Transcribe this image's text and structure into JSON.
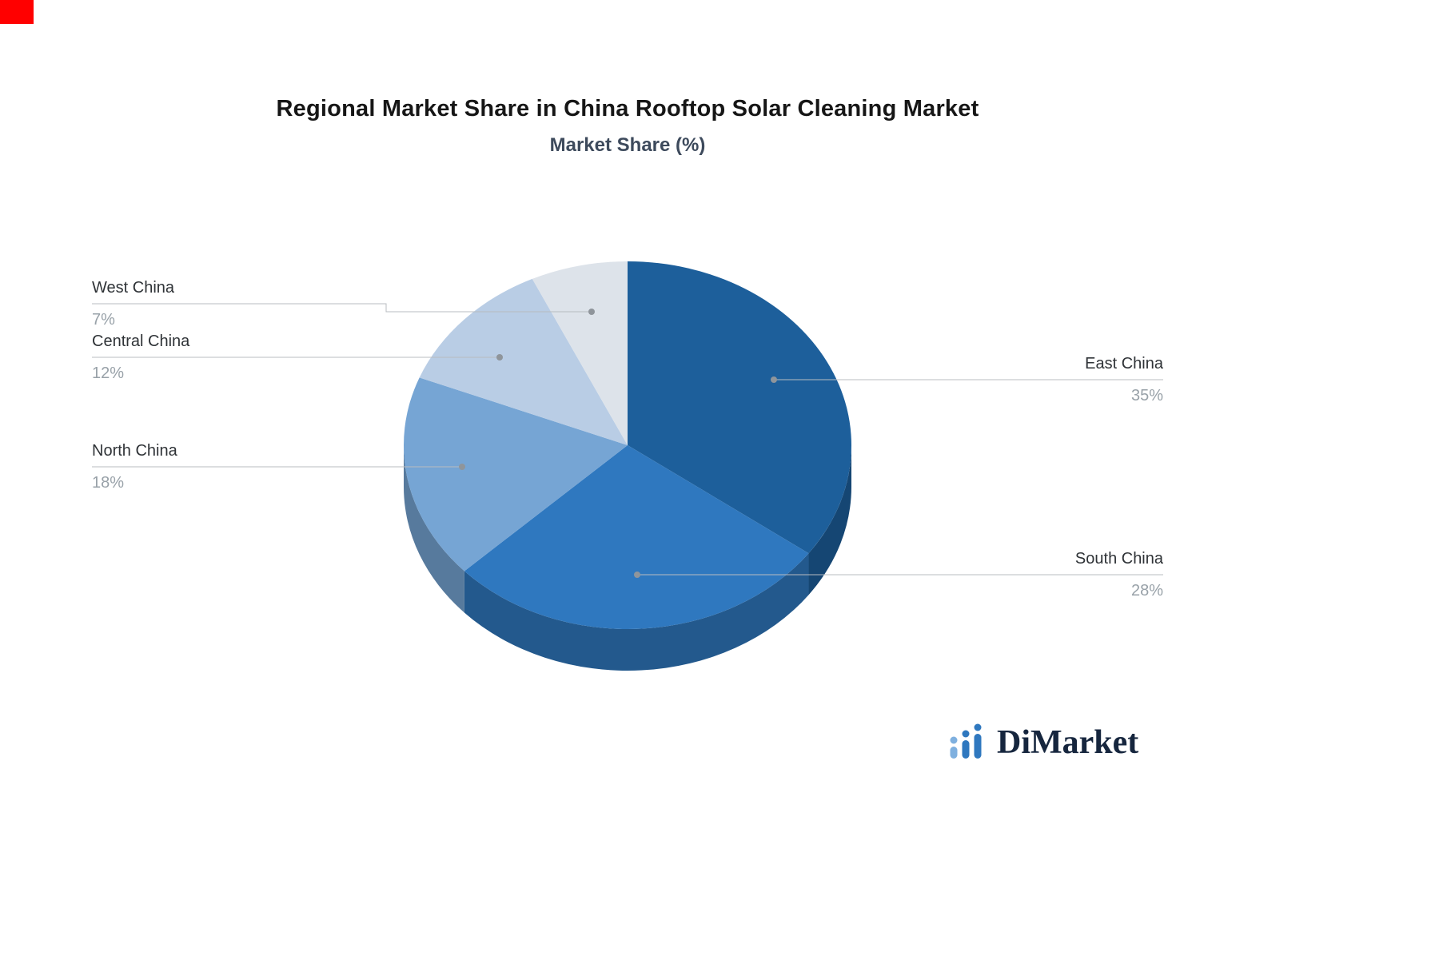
{
  "page": {
    "background": "#ffffff",
    "corner_marker_color": "#ff0000"
  },
  "chart_data": {
    "type": "pie",
    "title": "Regional Market Share in China Rooftop Solar Cleaning Market",
    "subtitle": "Market Share (%)",
    "unit": "%",
    "start_angle_deg": 0,
    "direction": "clockwise",
    "style_3d": true,
    "legend_position": "none",
    "slices": [
      {
        "label": "East China",
        "value": 35,
        "value_label": "35%",
        "color": "#1d5f9b"
      },
      {
        "label": "South China",
        "value": 28,
        "value_label": "28%",
        "color": "#2f78bf"
      },
      {
        "label": "North China",
        "value": 18,
        "value_label": "18%",
        "color": "#76a5d4"
      },
      {
        "label": "Central China",
        "value": 12,
        "value_label": "12%",
        "color": "#b9cde5"
      },
      {
        "label": "West China",
        "value": 7,
        "value_label": "7%",
        "color": "#dde3ea"
      }
    ]
  },
  "branding": {
    "logo_text": "DiMarket",
    "logo_text_color": "#16263e",
    "logo_icon_colors": [
      "#7fb0df",
      "#2f78bf",
      "#2f78bf"
    ]
  }
}
